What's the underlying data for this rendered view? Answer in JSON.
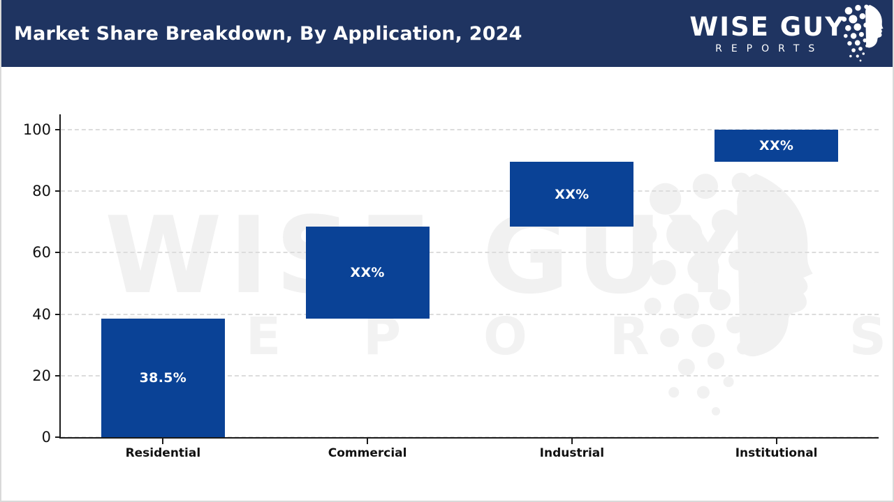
{
  "page": {
    "background": "#ffffff",
    "border_color": "#d9d9d9"
  },
  "header": {
    "title": "Market Share Breakdown, By Application, 2024",
    "bg_color": "#1f3461",
    "text_color": "#ffffff",
    "logo": {
      "line1": "WISE GUY",
      "line2": "REPORTS"
    }
  },
  "watermark": {
    "line1": "WISE GUY",
    "line2": "R E P O R T S",
    "color": "#f1f1f1"
  },
  "chart_data": {
    "type": "bar",
    "subtype": "waterfall",
    "title": "Market Share Breakdown, By Application, 2024",
    "xlabel": "",
    "ylabel": "",
    "categories": [
      "Residential",
      "Commercial",
      "Industrial",
      "Institutional"
    ],
    "segments": [
      {
        "category": "Residential",
        "start": 0,
        "end": 38.5,
        "label": "38.5%"
      },
      {
        "category": "Commercial",
        "start": 38.5,
        "end": 68.5,
        "label": "XX%"
      },
      {
        "category": "Industrial",
        "start": 68.5,
        "end": 89.5,
        "label": "XX%"
      },
      {
        "category": "Institutional",
        "start": 89.5,
        "end": 100,
        "label": "XX%"
      }
    ],
    "ylim": [
      0,
      100
    ],
    "yticks": [
      0,
      20,
      40,
      60,
      80,
      100
    ],
    "grid": "horizontal-dashed",
    "legend": "none",
    "bar_color": "#0a4296",
    "bar_label_color": "#ffffff",
    "grid_color": "#dcdcdc",
    "axis_color": "#1a1a1a"
  }
}
